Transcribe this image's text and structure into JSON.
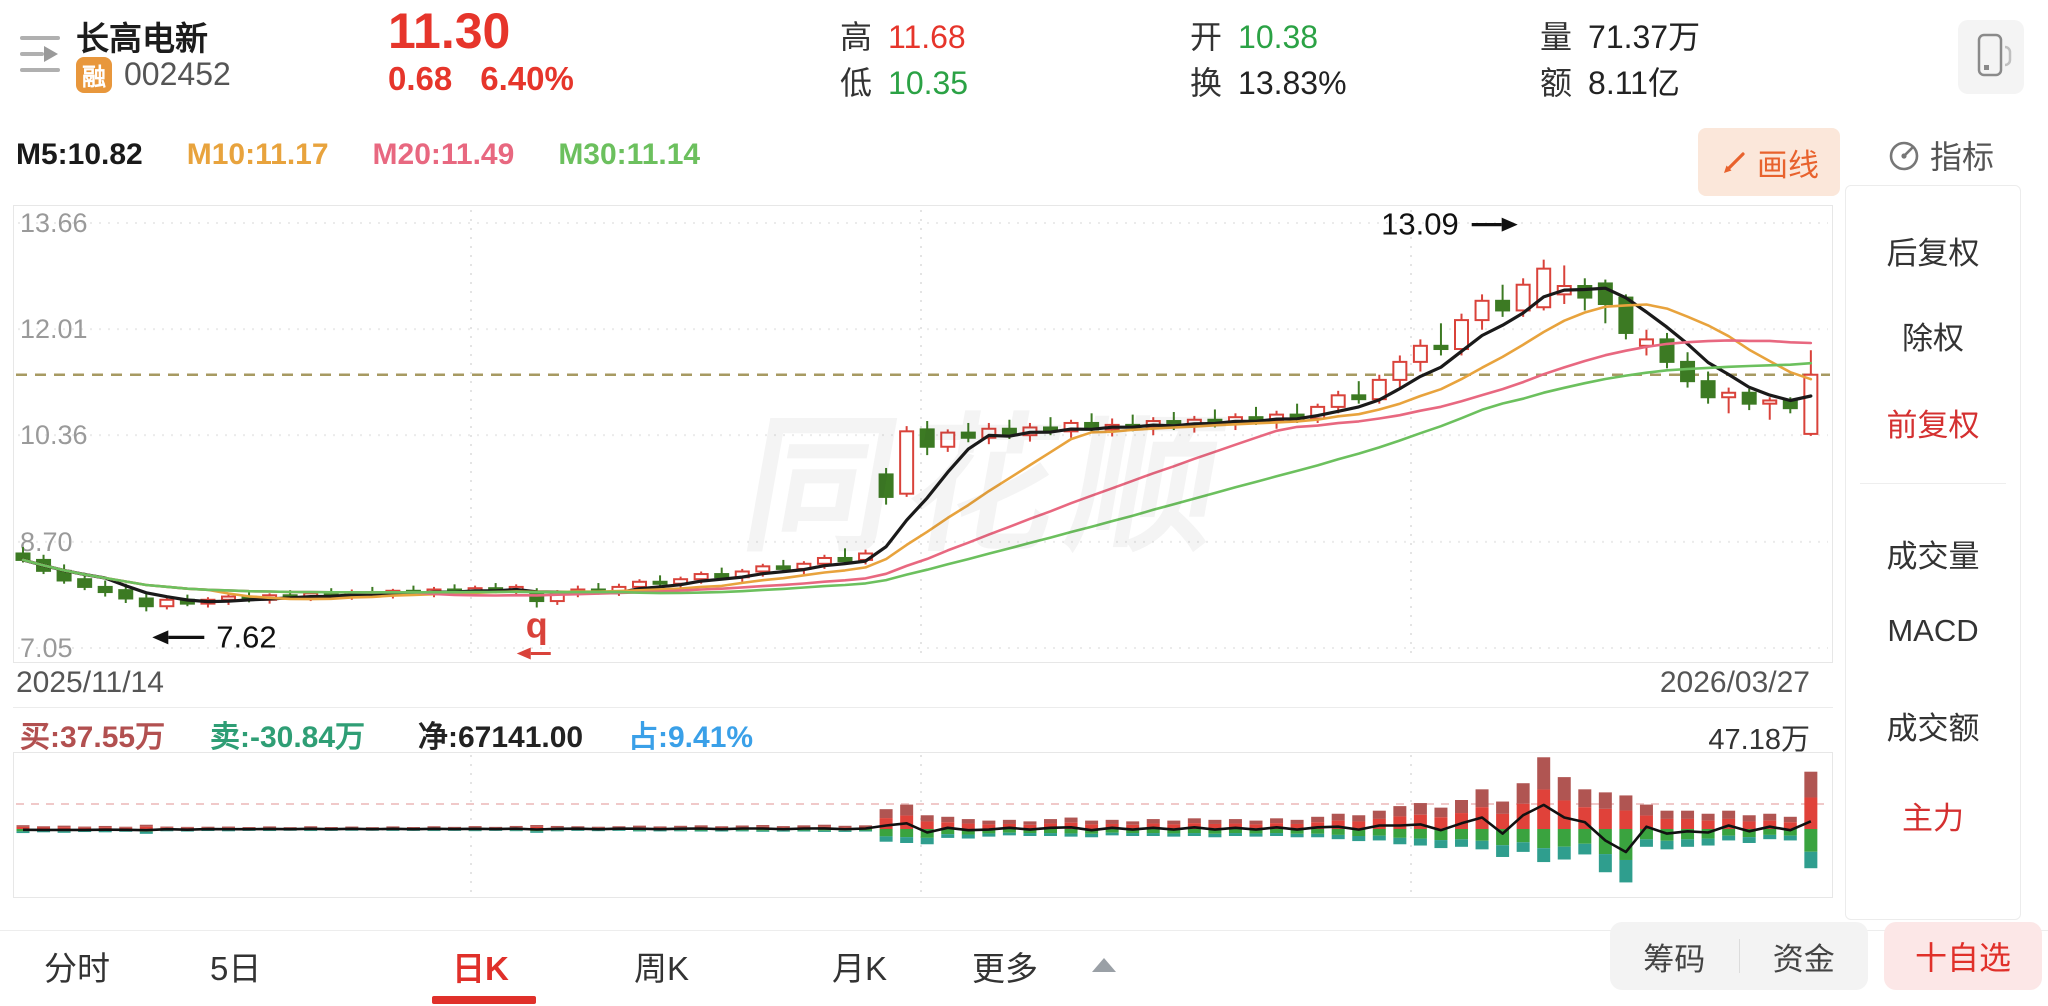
{
  "header": {
    "stock_name": "长高电新",
    "margin_badge": "融",
    "stock_code": "002452",
    "price": "11.30",
    "change": "0.68",
    "change_pct": "6.40%",
    "high_label": "高",
    "high_value": "11.68",
    "low_label": "低",
    "low_value": "10.35",
    "open_label": "开",
    "open_value": "10.38",
    "turnover_label": "换",
    "turnover_value": "13.83%",
    "volume_label": "量",
    "volume_value": "71.37万",
    "amount_label": "额",
    "amount_value": "8.11亿"
  },
  "ma_bar": {
    "m5": "M5:10.82",
    "m10": "M10:11.17",
    "m20": "M20:11.49",
    "m30": "M30:11.14",
    "draw_line": "画线",
    "indicator": "指标"
  },
  "sidebar": {
    "items": [
      {
        "label": "后复权",
        "active": false
      },
      {
        "label": "除权",
        "active": false
      },
      {
        "label": "前复权",
        "active": true
      },
      {
        "label": "成交量",
        "active": false
      },
      {
        "label": "MACD",
        "active": false
      },
      {
        "label": "成交额",
        "active": false
      },
      {
        "label": "主力",
        "active": true
      }
    ]
  },
  "dates": {
    "start": "2025/11/14",
    "end": "2026/03/27"
  },
  "money_flow": {
    "buy": "买:37.55万",
    "sell": "卖:-30.84万",
    "net": "净:67141.00",
    "ratio": "占:9.41%",
    "volume_scale": "47.18万"
  },
  "tabs": [
    {
      "label": "分时",
      "active": false
    },
    {
      "label": "5日",
      "active": false
    },
    {
      "label": "日K",
      "active": true
    },
    {
      "label": "周K",
      "active": false
    },
    {
      "label": "月K",
      "active": false
    },
    {
      "label": "更多",
      "active": false
    }
  ],
  "bottom_buttons": {
    "chips": "筹码",
    "funds": "资金",
    "add_watchlist": "十自选"
  },
  "watermark": "同花顺",
  "chart_data": {
    "type": "candlestick",
    "title": "长高电新 002452 日K 前复权",
    "x_range": [
      "2025/11/14",
      "2026/03/27"
    ],
    "y_range": [
      7.05,
      13.66
    ],
    "y_ticks": [
      "13.66",
      "12.01",
      "10.36",
      "8.70",
      "7.05"
    ],
    "grid": true,
    "price_line": 11.3,
    "annotations": [
      {
        "kind": "peak",
        "idx": 74,
        "text": "13.09"
      },
      {
        "kind": "low",
        "idx": 6,
        "text": "7.62"
      },
      {
        "kind": "exdiv",
        "idx": 25,
        "text": "q"
      }
    ],
    "ma_legend": [
      {
        "name": "M5",
        "value": 10.82
      },
      {
        "name": "M10",
        "value": 11.17
      },
      {
        "name": "M20",
        "value": 11.49
      },
      {
        "name": "M30",
        "value": 11.14
      }
    ],
    "colors": {
      "up": "#d9423a",
      "down": "#3c7a23",
      "ma5": "#1a1a1a",
      "ma10": "#e8a33d",
      "ma20": "#e86880",
      "ma30": "#6cc05e",
      "price_line": "#a79a62",
      "buy_bar": "#e0423a",
      "buy_bar_dark": "#b05552",
      "sell_bar": "#3aa33f",
      "sell_bar_dark": "#2f9e8e",
      "accent_red": "#e0302a"
    },
    "candles": [
      [
        8.52,
        8.62,
        8.38,
        8.42
      ],
      [
        8.42,
        8.5,
        8.2,
        8.25
      ],
      [
        8.25,
        8.35,
        8.05,
        8.1
      ],
      [
        8.12,
        8.22,
        7.95,
        8.0
      ],
      [
        8.0,
        8.1,
        7.85,
        7.92
      ],
      [
        7.95,
        8.05,
        7.75,
        7.82
      ],
      [
        7.82,
        7.92,
        7.62,
        7.7
      ],
      [
        7.7,
        7.85,
        7.65,
        7.8
      ],
      [
        7.8,
        7.88,
        7.7,
        7.74
      ],
      [
        7.74,
        7.84,
        7.68,
        7.8
      ],
      [
        7.8,
        7.9,
        7.72,
        7.85
      ],
      [
        7.85,
        7.92,
        7.76,
        7.8
      ],
      [
        7.8,
        7.9,
        7.74,
        7.87
      ],
      [
        7.87,
        7.95,
        7.8,
        7.83
      ],
      [
        7.83,
        7.93,
        7.78,
        7.9
      ],
      [
        7.9,
        7.98,
        7.82,
        7.86
      ],
      [
        7.86,
        7.96,
        7.8,
        7.92
      ],
      [
        7.92,
        8.0,
        7.85,
        7.88
      ],
      [
        7.88,
        7.97,
        7.82,
        7.94
      ],
      [
        7.94,
        8.02,
        7.86,
        7.9
      ],
      [
        7.9,
        8.0,
        7.84,
        7.96
      ],
      [
        7.96,
        8.04,
        7.88,
        7.92
      ],
      [
        7.92,
        8.02,
        7.86,
        7.98
      ],
      [
        7.98,
        8.06,
        7.9,
        7.94
      ],
      [
        7.94,
        8.04,
        7.88,
        8.0
      ],
      [
        7.9,
        7.98,
        7.68,
        7.78
      ],
      [
        7.78,
        7.95,
        7.72,
        7.9
      ],
      [
        7.9,
        8.02,
        7.84,
        7.96
      ],
      [
        7.96,
        8.06,
        7.88,
        7.92
      ],
      [
        7.92,
        8.05,
        7.86,
        8.0
      ],
      [
        8.0,
        8.12,
        7.94,
        8.08
      ],
      [
        8.08,
        8.18,
        8.0,
        8.05
      ],
      [
        8.05,
        8.16,
        7.98,
        8.12
      ],
      [
        8.12,
        8.24,
        8.05,
        8.2
      ],
      [
        8.2,
        8.3,
        8.1,
        8.15
      ],
      [
        8.15,
        8.28,
        8.08,
        8.24
      ],
      [
        8.24,
        8.36,
        8.16,
        8.32
      ],
      [
        8.32,
        8.42,
        8.22,
        8.28
      ],
      [
        8.28,
        8.4,
        8.2,
        8.36
      ],
      [
        8.36,
        8.5,
        8.28,
        8.45
      ],
      [
        8.45,
        8.6,
        8.36,
        8.4
      ],
      [
        8.42,
        8.58,
        8.35,
        8.52
      ],
      [
        9.75,
        9.85,
        9.28,
        9.4
      ],
      [
        9.45,
        10.5,
        9.4,
        10.42
      ],
      [
        10.45,
        10.58,
        10.05,
        10.18
      ],
      [
        10.18,
        10.45,
        10.1,
        10.4
      ],
      [
        10.4,
        10.55,
        10.25,
        10.32
      ],
      [
        10.32,
        10.55,
        10.22,
        10.46
      ],
      [
        10.46,
        10.6,
        10.3,
        10.36
      ],
      [
        10.36,
        10.55,
        10.26,
        10.48
      ],
      [
        10.48,
        10.64,
        10.36,
        10.42
      ],
      [
        10.42,
        10.6,
        10.32,
        10.55
      ],
      [
        10.55,
        10.7,
        10.4,
        10.45
      ],
      [
        10.45,
        10.62,
        10.34,
        10.52
      ],
      [
        10.52,
        10.68,
        10.42,
        10.48
      ],
      [
        10.48,
        10.64,
        10.36,
        10.58
      ],
      [
        10.58,
        10.72,
        10.44,
        10.5
      ],
      [
        10.5,
        10.66,
        10.4,
        10.6
      ],
      [
        10.6,
        10.76,
        10.48,
        10.55
      ],
      [
        10.55,
        10.7,
        10.44,
        10.64
      ],
      [
        10.64,
        10.8,
        10.52,
        10.58
      ],
      [
        10.58,
        10.74,
        10.46,
        10.68
      ],
      [
        10.68,
        10.85,
        10.55,
        10.62
      ],
      [
        10.62,
        10.85,
        10.55,
        10.8
      ],
      [
        10.8,
        11.05,
        10.7,
        10.98
      ],
      [
        10.98,
        11.2,
        10.85,
        10.92
      ],
      [
        10.92,
        11.3,
        10.85,
        11.22
      ],
      [
        11.22,
        11.6,
        11.1,
        11.5
      ],
      [
        11.5,
        11.85,
        11.35,
        11.75
      ],
      [
        11.75,
        12.1,
        11.6,
        11.7
      ],
      [
        11.7,
        12.25,
        11.6,
        12.15
      ],
      [
        12.15,
        12.55,
        12.0,
        12.45
      ],
      [
        12.45,
        12.7,
        12.2,
        12.3
      ],
      [
        12.3,
        12.8,
        12.2,
        12.7
      ],
      [
        12.35,
        13.09,
        12.3,
        12.95
      ],
      [
        12.55,
        13.0,
        12.4,
        12.68
      ],
      [
        12.68,
        12.8,
        12.3,
        12.5
      ],
      [
        12.72,
        12.78,
        12.1,
        12.4
      ],
      [
        12.5,
        12.55,
        11.85,
        11.95
      ],
      [
        11.75,
        12.0,
        11.6,
        11.85
      ],
      [
        11.85,
        11.95,
        11.4,
        11.5
      ],
      [
        11.5,
        11.65,
        11.1,
        11.2
      ],
      [
        11.2,
        11.35,
        10.85,
        10.95
      ],
      [
        10.95,
        11.1,
        10.7,
        11.02
      ],
      [
        11.02,
        11.08,
        10.75,
        10.85
      ],
      [
        10.85,
        10.95,
        10.6,
        10.9
      ],
      [
        10.9,
        10.95,
        10.7,
        10.78
      ],
      [
        10.38,
        11.68,
        10.35,
        11.3
      ]
    ],
    "volume": {
      "scale_max": 47.18,
      "buy": [
        2.5,
        1.8,
        2.2,
        1.6,
        2.0,
        1.5,
        2.8,
        1.6,
        1.4,
        1.5,
        1.6,
        1.3,
        1.7,
        1.2,
        1.8,
        1.3,
        1.6,
        1.2,
        1.7,
        1.3,
        1.8,
        1.4,
        1.9,
        1.4,
        2.0,
        2.6,
        2.0,
        1.8,
        1.5,
        1.8,
        2.2,
        1.7,
        2.1,
        2.4,
        1.8,
        2.3,
        2.6,
        1.9,
        2.4,
        2.8,
        2.1,
        2.4,
        13.0,
        16.0,
        9.0,
        8.0,
        6.5,
        5.5,
        6.0,
        5.0,
        6.5,
        7.5,
        5.5,
        6.0,
        5.0,
        6.5,
        5.5,
        7.0,
        6.0,
        6.5,
        5.5,
        7.0,
        6.0,
        8.0,
        10.0,
        9.0,
        12.0,
        15.0,
        17.0,
        14.0,
        19.0,
        26.0,
        18.0,
        30.0,
        47.0,
        34.0,
        26.0,
        24.0,
        22.0,
        16.0,
        12.0,
        12.0,
        10.0,
        12.0,
        9.0,
        10.0,
        8.0,
        37.55
      ],
      "sell": [
        3.2,
        2.6,
        3.0,
        2.4,
        2.6,
        2.2,
        3.8,
        1.8,
        2.0,
        1.6,
        1.8,
        1.5,
        1.6,
        1.4,
        1.6,
        1.5,
        1.4,
        1.4,
        1.5,
        1.5,
        1.6,
        1.5,
        1.7,
        1.5,
        1.7,
        3.0,
        1.8,
        1.5,
        1.7,
        1.5,
        1.9,
        1.9,
        1.8,
        2.0,
        2.0,
        1.9,
        2.2,
        2.1,
        2.0,
        2.3,
        2.3,
        2.0,
        10.0,
        11.0,
        12.0,
        7.0,
        7.5,
        6.0,
        5.0,
        5.5,
        5.5,
        6.0,
        6.5,
        5.0,
        5.5,
        5.5,
        6.0,
        5.5,
        6.5,
        5.5,
        6.0,
        5.5,
        6.5,
        6.5,
        8.0,
        9.5,
        9.0,
        12.0,
        13.0,
        15.0,
        14.0,
        16.0,
        22.0,
        18.0,
        26.0,
        24.0,
        20.0,
        34.0,
        42.0,
        14.0,
        16.0,
        14.0,
        13.0,
        9.0,
        11.0,
        8.0,
        9.0,
        30.84
      ]
    }
  }
}
